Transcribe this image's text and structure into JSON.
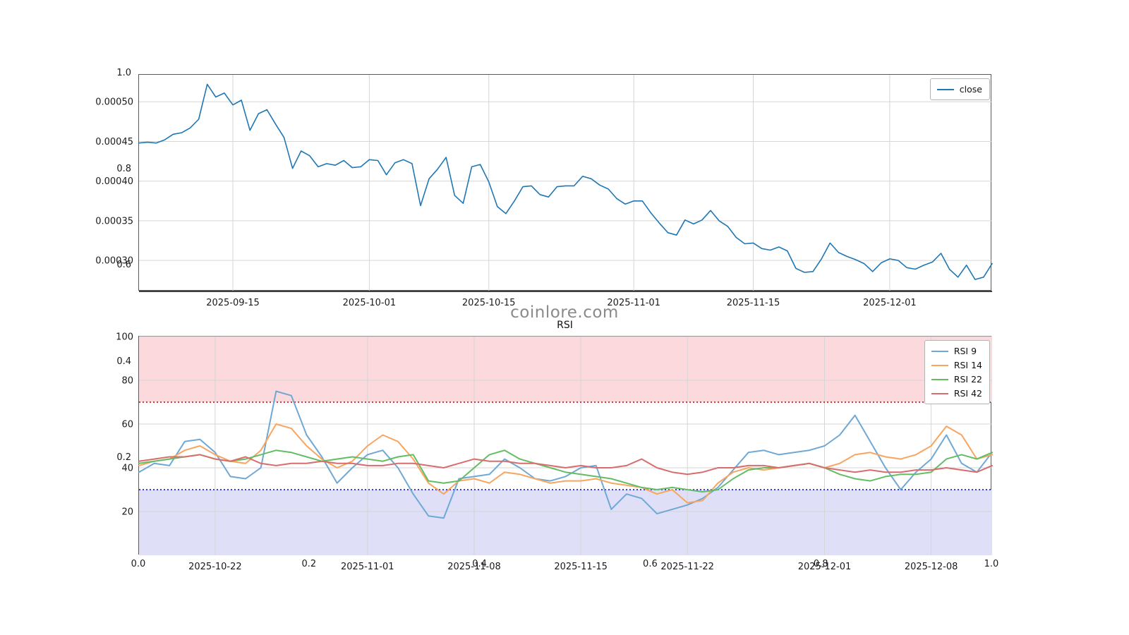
{
  "watermark": "coinlore.com",
  "colors": {
    "grid": "#d6d6d6",
    "axis_border": "#5a5a5a",
    "watermark": "#8a8a8a",
    "legend_border": "#b3b3b3",
    "legend_bg": "#ffffff"
  },
  "overlay_axis": {
    "yticks": [
      "1.0",
      "0.8",
      "0.6",
      "0.4",
      "0.2"
    ],
    "xticks": [
      "0.0",
      "0.2",
      "0.4",
      "0.6",
      "0.8",
      "1.0"
    ]
  },
  "chart_data": [
    {
      "type": "line",
      "title": "",
      "xlabel": "",
      "ylabel": "",
      "x_start": "2025-09-04",
      "x_interval": "daily",
      "grid": true,
      "legend_position": "top-right",
      "ylim": [
        0.000261,
        0.000534
      ],
      "yticks": [
        0.0005,
        0.00045,
        0.0004,
        0.00035,
        0.0003
      ],
      "ytick_labels": [
        "0.00050",
        "0.00045",
        "0.00040",
        "0.00035",
        "0.00030"
      ],
      "xticks": [
        {
          "label": "2025-09-15",
          "index": 11
        },
        {
          "label": "2025-10-01",
          "index": 27
        },
        {
          "label": "2025-10-15",
          "index": 41
        },
        {
          "label": "2025-11-01",
          "index": 58
        },
        {
          "label": "2025-11-15",
          "index": 72
        },
        {
          "label": "2025-12-01",
          "index": 88
        }
      ],
      "series": [
        {
          "name": "close",
          "color": "#1f77b4",
          "width": 1.6,
          "values": [
            0.000448,
            0.000449,
            0.000448,
            0.000452,
            0.000459,
            0.000461,
            0.000467,
            0.000478,
            0.000522,
            0.000506,
            0.000511,
            0.000496,
            0.000502,
            0.000464,
            0.000485,
            0.00049,
            0.000472,
            0.000455,
            0.000416,
            0.000438,
            0.000432,
            0.000418,
            0.000422,
            0.00042,
            0.000426,
            0.000417,
            0.000418,
            0.000427,
            0.000426,
            0.000408,
            0.000423,
            0.000427,
            0.000422,
            0.000369,
            0.000403,
            0.000415,
            0.00043,
            0.000382,
            0.000372,
            0.000418,
            0.000421,
            0.000399,
            0.000368,
            0.000359,
            0.000375,
            0.000393,
            0.000394,
            0.000383,
            0.00038,
            0.000393,
            0.000394,
            0.000394,
            0.000406,
            0.000403,
            0.000395,
            0.00039,
            0.000378,
            0.000371,
            0.000375,
            0.000375,
            0.00036,
            0.000347,
            0.000335,
            0.000332,
            0.000351,
            0.000346,
            0.000351,
            0.000363,
            0.00035,
            0.000343,
            0.000329,
            0.000321,
            0.000322,
            0.000315,
            0.000313,
            0.000317,
            0.000312,
            0.00029,
            0.000285,
            0.000286,
            0.000302,
            0.000322,
            0.00031,
            0.000305,
            0.000301,
            0.000296,
            0.000286,
            0.000297,
            0.000302,
            0.0003,
            0.000291,
            0.000289,
            0.000294,
            0.000298,
            0.000309,
            0.000289,
            0.000279,
            0.000294,
            0.000276,
            0.000279,
            0.000296
          ]
        }
      ]
    },
    {
      "type": "line",
      "title": "RSI",
      "xlabel": "",
      "ylabel": "",
      "x_start": "2025-10-17",
      "x_interval": "daily",
      "grid": true,
      "legend_position": "top-right",
      "ylim": [
        0,
        100
      ],
      "yticks": [
        100,
        80,
        60,
        40,
        20
      ],
      "ytick_labels": [
        "100",
        "80",
        "60",
        "40",
        "20"
      ],
      "xticks": [
        {
          "label": "2025-10-22",
          "index": 5
        },
        {
          "label": "2025-11-01",
          "index": 15
        },
        {
          "label": "2025-11-08",
          "index": 22
        },
        {
          "label": "2025-11-15",
          "index": 29
        },
        {
          "label": "2025-11-22",
          "index": 36
        },
        {
          "label": "2025-12-01",
          "index": 45
        },
        {
          "label": "2025-12-08",
          "index": 52
        }
      ],
      "bands": [
        {
          "name": "overbought-zone",
          "from": 70,
          "to": 100,
          "color": "#fbd9dc",
          "line": 70,
          "line_color": "#c00000"
        },
        {
          "name": "oversold-zone",
          "from": 0,
          "to": 30,
          "color": "#dfdff7",
          "line": 30,
          "line_color": "#0000c0"
        }
      ],
      "series": [
        {
          "name": "RSI 9",
          "color": "#6fa8d4",
          "width": 2,
          "values": [
            38,
            42,
            41,
            52,
            53,
            47,
            36,
            35,
            40,
            75,
            73,
            55,
            45,
            33,
            40,
            46,
            48,
            40,
            28,
            18,
            17,
            35,
            36,
            37,
            44,
            40,
            35,
            34,
            36,
            40,
            41,
            21,
            28,
            26,
            19,
            21,
            23,
            26,
            31,
            39,
            47,
            48,
            46,
            47,
            48,
            50,
            55,
            64,
            52,
            40,
            30,
            38,
            44,
            55,
            42,
            38,
            47
          ]
        },
        {
          "name": "RSI 14",
          "color": "#f8a55f",
          "width": 2,
          "values": [
            41,
            43,
            44,
            48,
            50,
            46,
            43,
            42,
            48,
            60,
            58,
            50,
            44,
            40,
            43,
            50,
            55,
            52,
            44,
            33,
            28,
            34,
            35,
            33,
            38,
            37,
            35,
            33,
            34,
            34,
            35,
            33,
            32,
            31,
            28,
            30,
            24,
            25,
            33,
            38,
            40,
            39,
            40,
            41,
            42,
            40,
            42,
            46,
            47,
            45,
            44,
            46,
            50,
            59,
            55,
            44,
            46
          ]
        },
        {
          "name": "RSI 22",
          "color": "#63bd63",
          "width": 2,
          "values": [
            42,
            43,
            44,
            45,
            46,
            44,
            43,
            44,
            46,
            48,
            47,
            45,
            43,
            44,
            45,
            44,
            43,
            45,
            46,
            34,
            33,
            34,
            40,
            46,
            48,
            44,
            42,
            40,
            38,
            37,
            36,
            35,
            33,
            31,
            30,
            31,
            30,
            29,
            30,
            35,
            39,
            40,
            40,
            41,
            42,
            40,
            37,
            35,
            34,
            36,
            37,
            37,
            38,
            44,
            46,
            44,
            47
          ]
        },
        {
          "name": "RSI 42",
          "color": "#d96d6d",
          "width": 2,
          "values": [
            43,
            44,
            45,
            45,
            46,
            44,
            43,
            45,
            42,
            41,
            42,
            42,
            43,
            42,
            42,
            41,
            41,
            42,
            42,
            41,
            40,
            42,
            44,
            43,
            43,
            42,
            42,
            41,
            40,
            41,
            40,
            40,
            41,
            44,
            40,
            38,
            37,
            38,
            40,
            40,
            41,
            41,
            40,
            41,
            42,
            40,
            39,
            38,
            39,
            38,
            38,
            39,
            39,
            40,
            39,
            38,
            41
          ]
        }
      ]
    }
  ]
}
